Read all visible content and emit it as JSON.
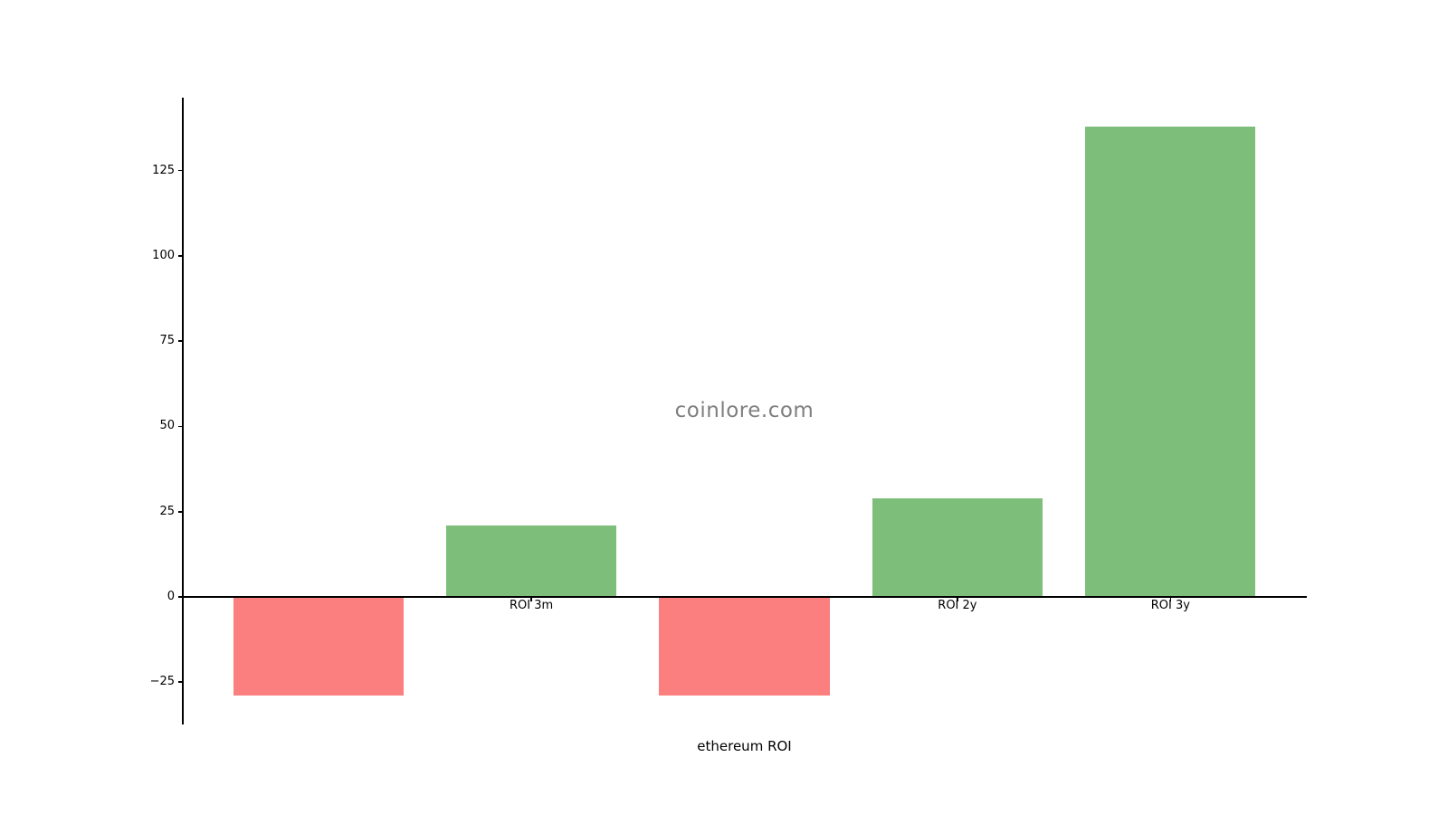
{
  "page": {
    "background": "#ffffff"
  },
  "chart_data": {
    "type": "bar",
    "title": "",
    "xlabel": "ethereum ROI",
    "ylabel": "",
    "watermark": "coinlore.com",
    "categories": [
      "",
      "ROI 3m",
      "",
      "ROI 2y",
      "ROI 3y"
    ],
    "values": [
      -29,
      21,
      -29,
      29,
      138
    ],
    "bar_colors": [
      "#fc7f7f",
      "#7dbe7a",
      "#fc7f7f",
      "#7dbe7a",
      "#7dbe7a"
    ],
    "yticks": [
      -25,
      0,
      25,
      50,
      75,
      100,
      125
    ],
    "ylim": [
      -37.4,
      146.4
    ],
    "grid": false,
    "legend_position": "none",
    "colors": {
      "positive_bar": "#7dbe7a",
      "negative_bar": "#fc7f7f",
      "axis": "#000000",
      "tick_label": "#000000",
      "watermark": "#7f7f7f"
    }
  }
}
